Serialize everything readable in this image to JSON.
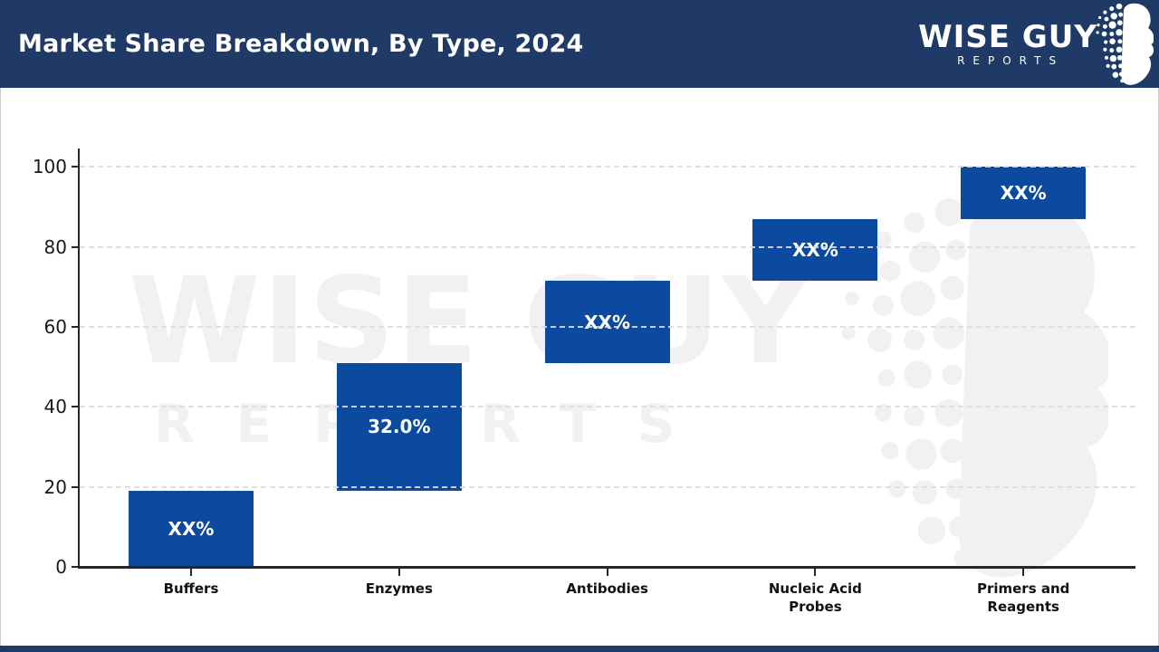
{
  "header": {
    "title": "Market Share Breakdown, By Type, 2024",
    "brand": {
      "name": "WISE GUY",
      "tagline": "REPORTS"
    }
  },
  "watermark": {
    "name": "WISE GUY",
    "tagline": "REPORTS"
  },
  "colors": {
    "header_bg": "#1f3a67",
    "bar": "#0c4a9f",
    "bar_label": "#ffffff",
    "grid": "#e2e2e2",
    "axis": "#262626",
    "watermark": "#f1f1f4"
  },
  "chart_data": {
    "type": "bar",
    "subtype": "waterfall",
    "title": "Market Share Breakdown, By Type, 2024",
    "categories": [
      "Buffers",
      "Enzymes",
      "Antibodies",
      "Nucleic Acid Probes",
      "Primers and Reagents"
    ],
    "series": [
      {
        "name": "Market share (%)",
        "segments": [
          [
            0,
            19
          ],
          [
            19,
            51
          ],
          [
            51,
            71.5
          ],
          [
            71.5,
            87
          ],
          [
            87,
            100
          ]
        ],
        "values": [
          19,
          32.0,
          20.5,
          15.5,
          13
        ]
      }
    ],
    "bar_labels": [
      "XX%",
      "32.0%",
      "XX%",
      "XX%",
      "XX%"
    ],
    "xlabel": "",
    "ylabel": "",
    "y_ticks": [
      0,
      20,
      40,
      60,
      80,
      100
    ],
    "ylim": [
      0,
      105
    ],
    "grid": "horizontal-dashed",
    "legend": "none"
  }
}
